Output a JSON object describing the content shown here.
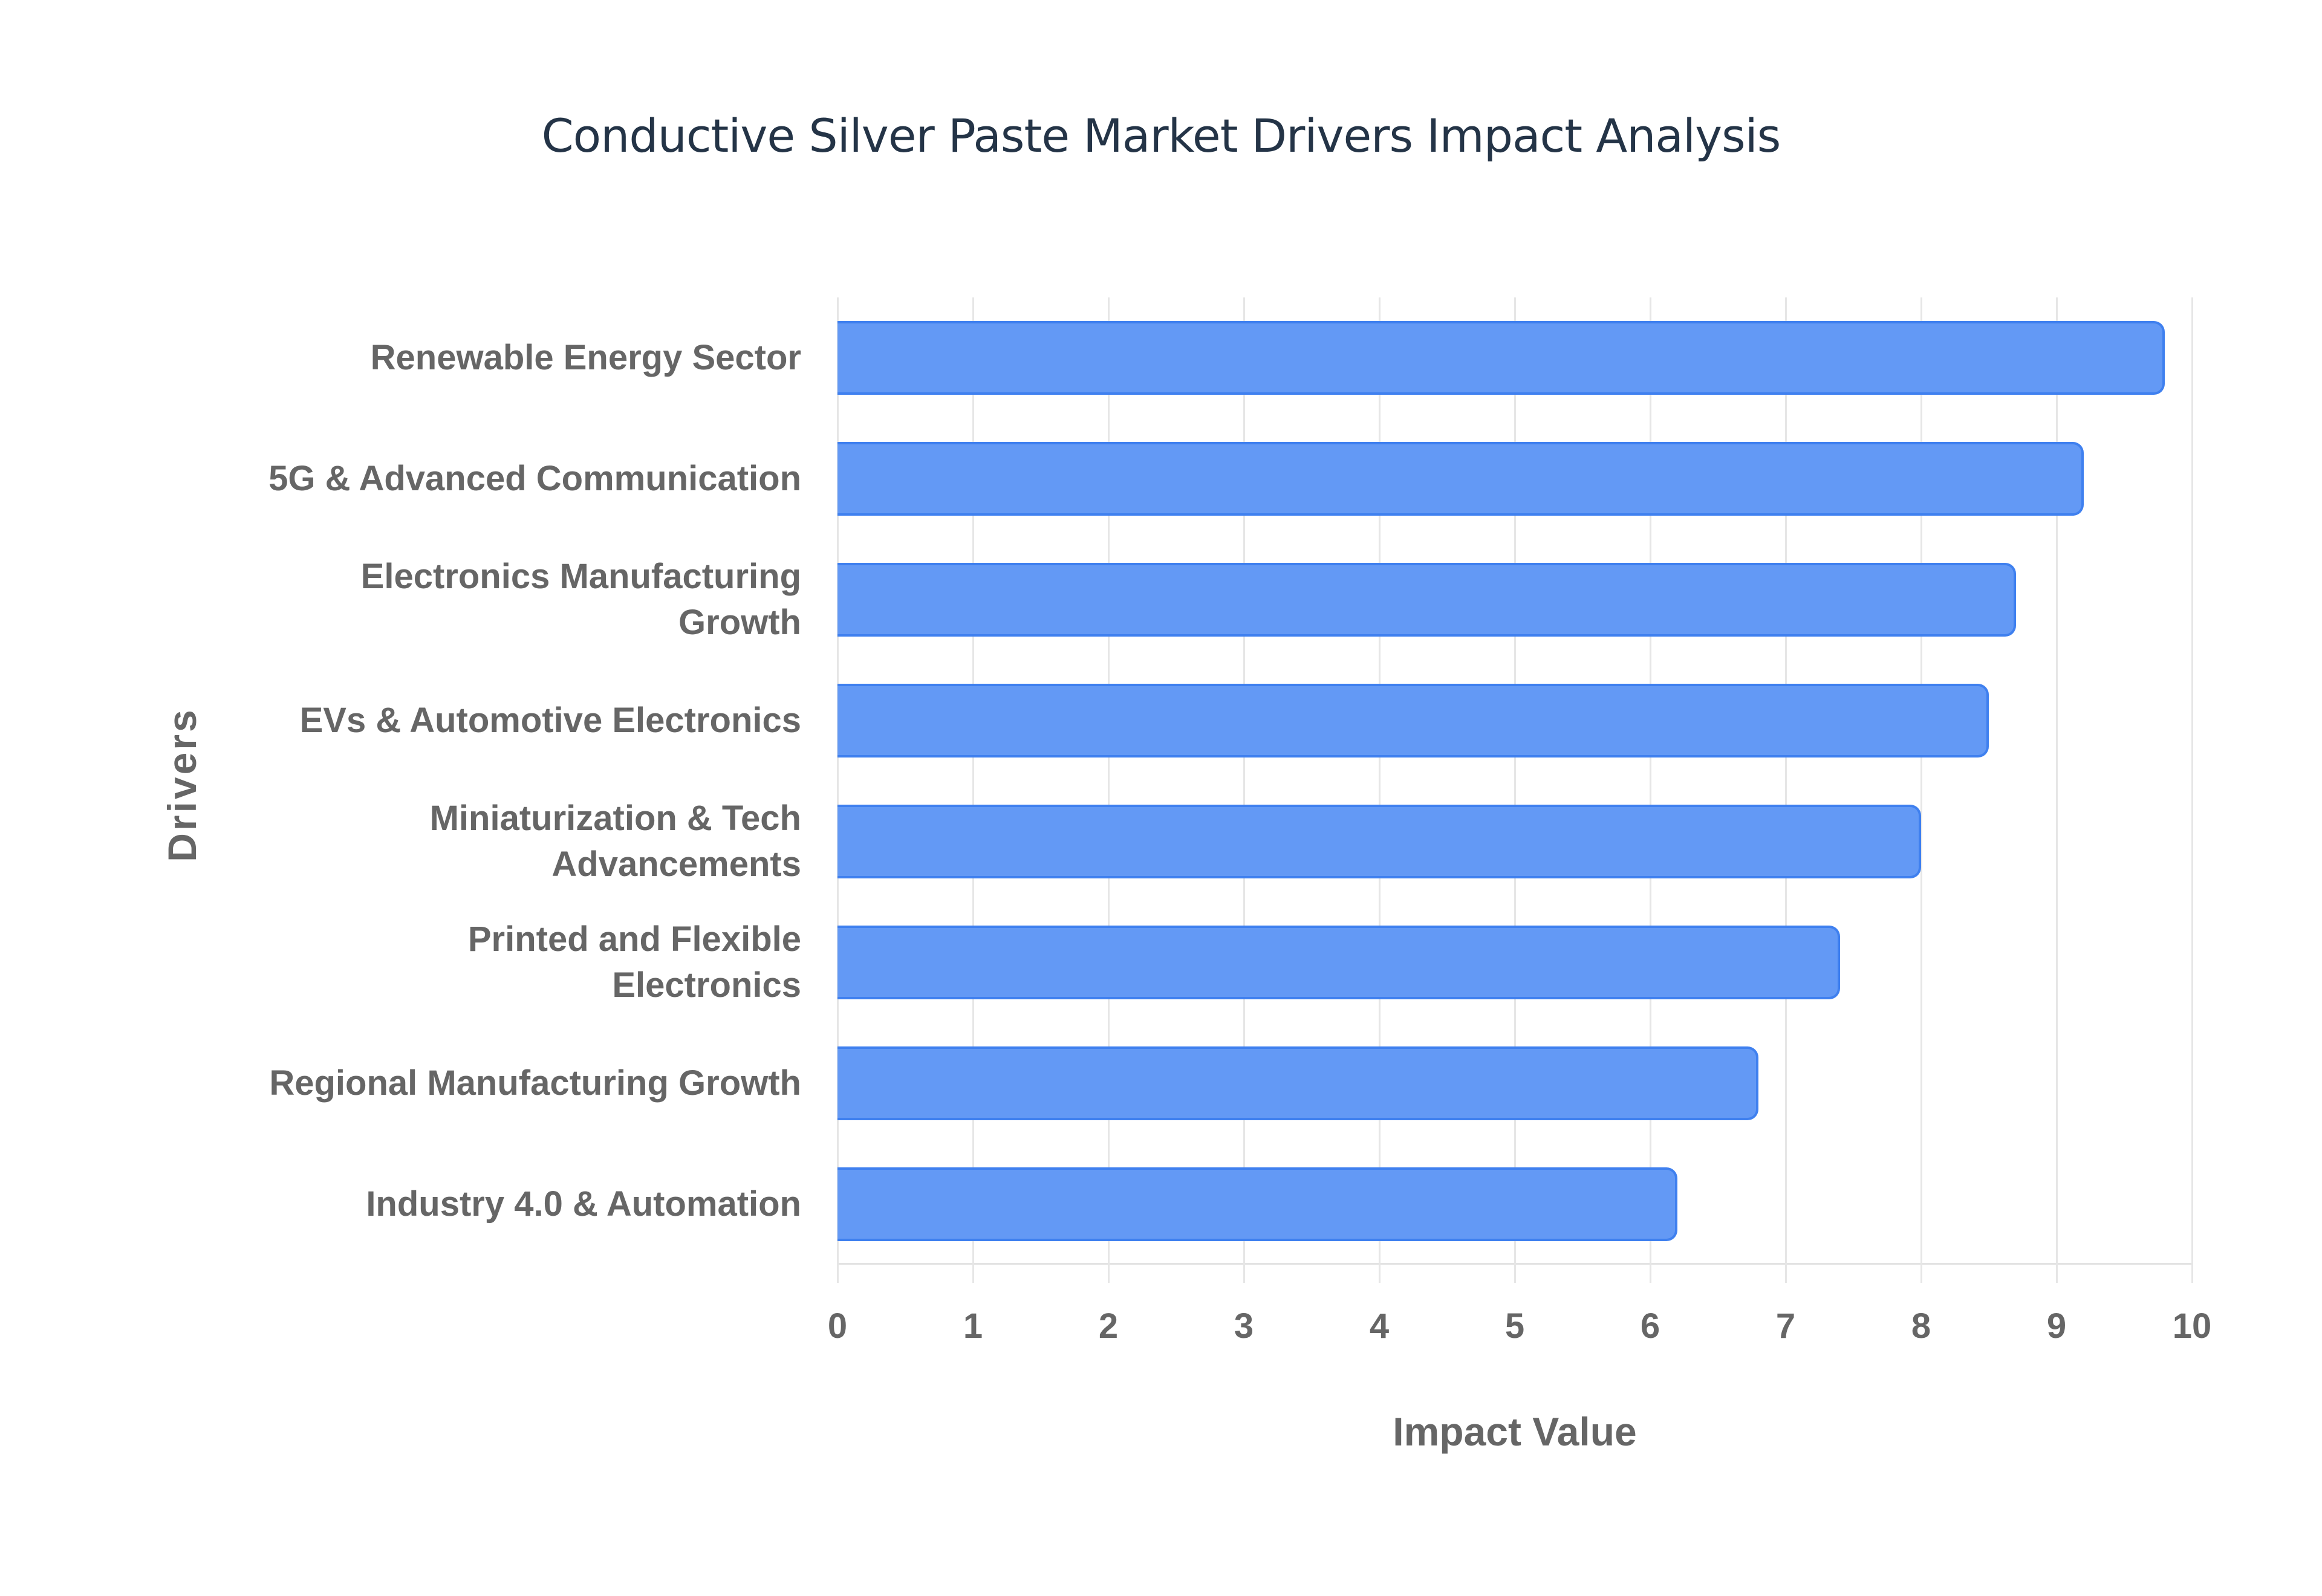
{
  "chart_data": {
    "type": "bar",
    "orientation": "horizontal",
    "title": "Conductive Silver Paste Market Drivers Impact Analysis",
    "xlabel": "Impact Value",
    "ylabel": "Drivers",
    "xlim": [
      0,
      10
    ],
    "xticks": [
      "0",
      "1",
      "2",
      "3",
      "4",
      "5",
      "6",
      "7",
      "8",
      "9",
      "10"
    ],
    "grid": true,
    "legend": null,
    "categories": [
      "Renewable Energy Sector",
      "5G & Advanced Communication",
      "Electronics Manufacturing Growth",
      "EVs & Automotive Electronics",
      "Miniaturization & Tech Advancements",
      "Printed and Flexible Electronics",
      "Regional Manufacturing Growth",
      "Industry 4.0 & Automation"
    ],
    "category_display_lines": [
      [
        "Renewable Energy Sector"
      ],
      [
        "5G & Advanced Communication"
      ],
      [
        "Electronics Manufacturing",
        "Growth"
      ],
      [
        "EVs & Automotive Electronics"
      ],
      [
        "Miniaturization & Tech",
        "Advancements"
      ],
      [
        "Printed and Flexible",
        "Electronics"
      ],
      [
        "Regional Manufacturing Growth"
      ],
      [
        "Industry 4.0 & Automation"
      ]
    ],
    "values": [
      9.8,
      9.2,
      8.7,
      8.5,
      8.0,
      7.4,
      6.8,
      6.2
    ],
    "bar_color": "#6399f5",
    "bar_border_color": "#3f80ef"
  }
}
